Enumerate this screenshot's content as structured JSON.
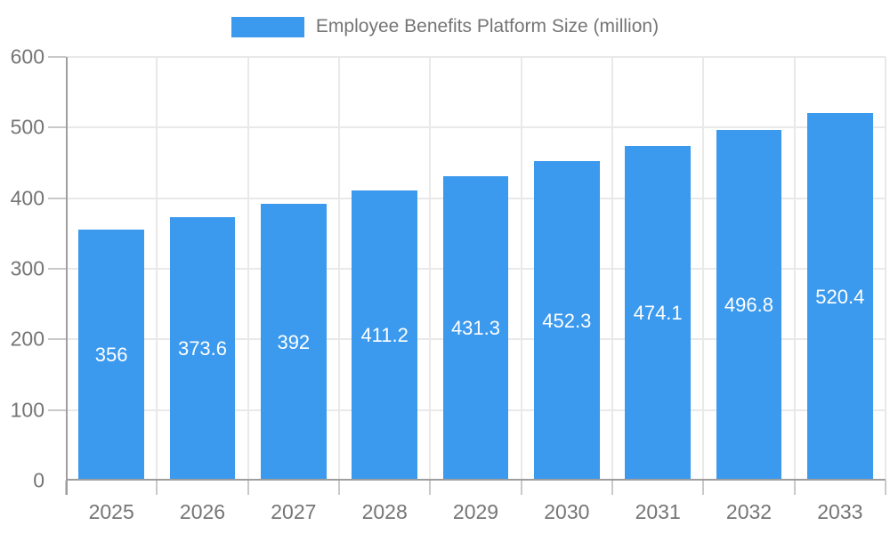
{
  "colors": {
    "bar": "#3b99ee",
    "bar_label_text": "#ffffff",
    "axis_text": "#757575",
    "legend_text": "#757575",
    "gridline": "#e9e9e9",
    "axis_line": "#9e9e9e",
    "background": "#ffffff"
  },
  "chart_data": {
    "type": "bar",
    "title": "Employee Benefits Platform Size (million)",
    "legend": [
      "Employee Benefits Platform Size (million)"
    ],
    "legend_position": "top-center",
    "categories": [
      "2025",
      "2026",
      "2027",
      "2028",
      "2029",
      "2030",
      "2031",
      "2032",
      "2033"
    ],
    "series": [
      {
        "name": "Employee Benefits Platform Size (million)",
        "values": [
          356,
          373.6,
          392,
          411.2,
          431.3,
          452.3,
          474.1,
          496.8,
          520.4
        ]
      }
    ],
    "bar_labels": [
      "356",
      "373.6",
      "392",
      "411.2",
      "431.3",
      "452.3",
      "474.1",
      "496.8",
      "520.4"
    ],
    "xlabel": "",
    "ylabel": "",
    "ylim": [
      0,
      600
    ],
    "yticks": [
      0,
      100,
      200,
      300,
      400,
      500,
      600
    ],
    "grid": true
  }
}
